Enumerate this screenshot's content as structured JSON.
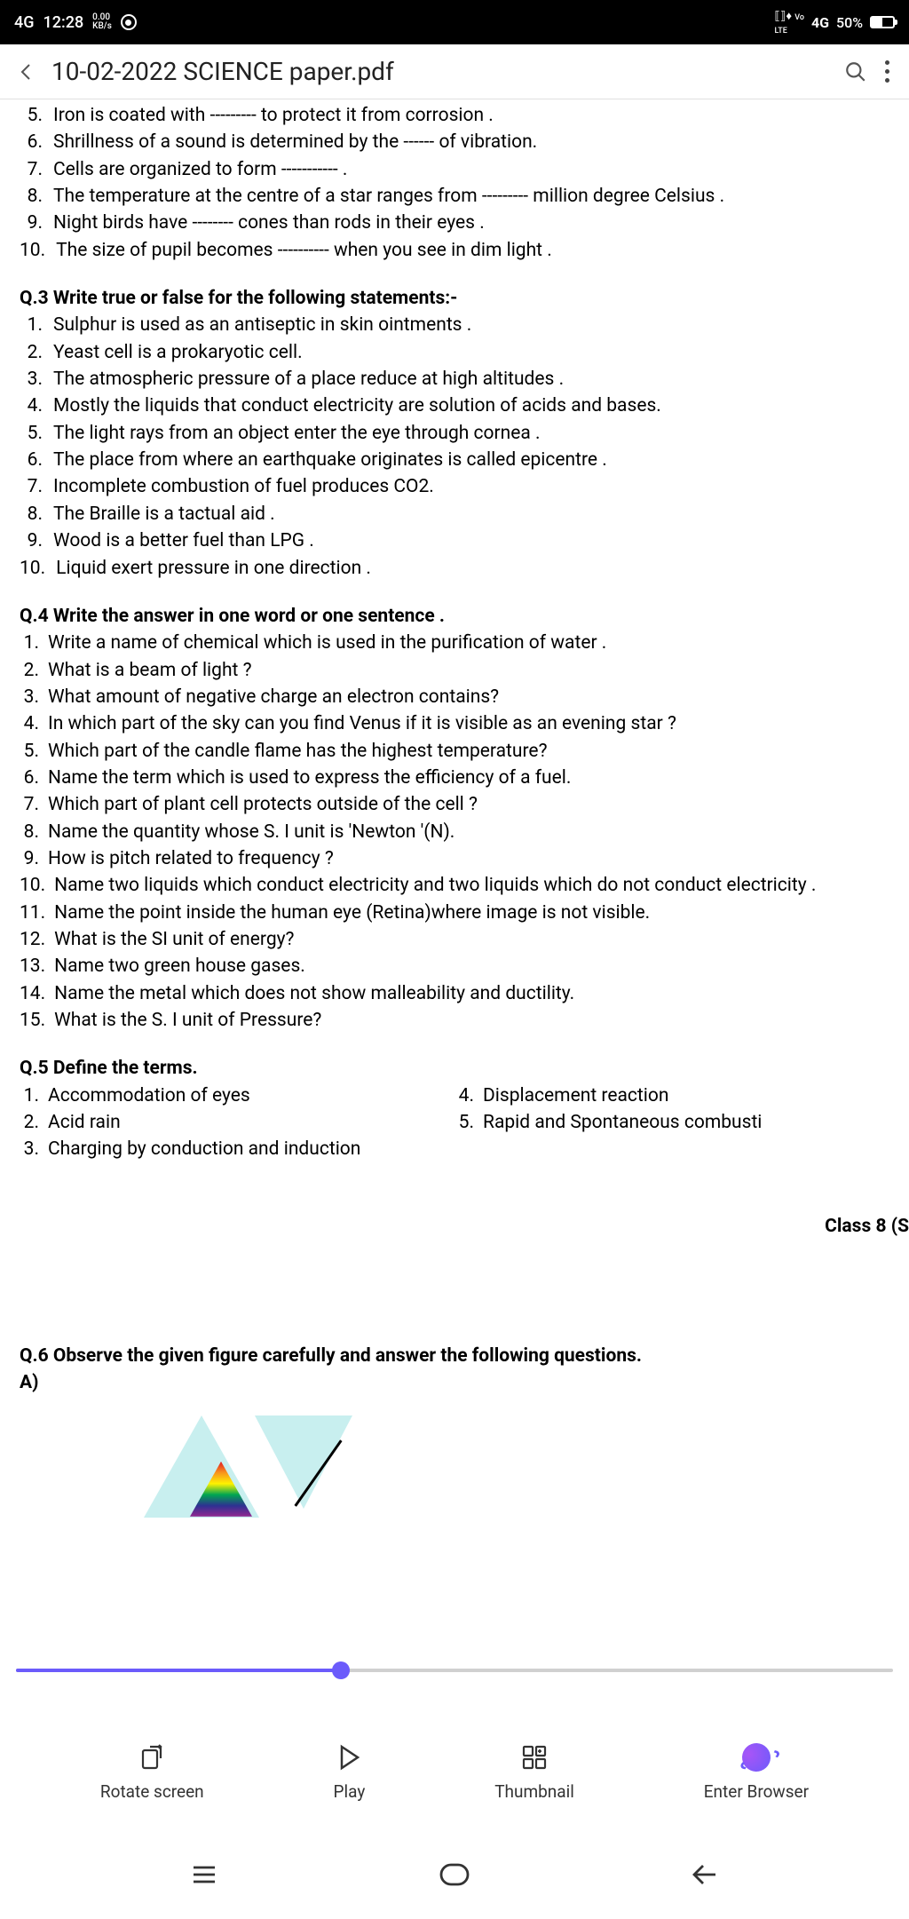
{
  "statusbar": {
    "network": "4G",
    "time": "12:28",
    "speed_top": "0.00",
    "speed_bottom": "KB/s",
    "right_icons": "⟦⟧⟨ Vo 4G",
    "lte": "LTE",
    "battery": "50%"
  },
  "header": {
    "title": "10-02-2022 SCIENCE paper.pdf"
  },
  "fill_blanks": [
    {
      "n": "5.",
      "t": "Iron is coated with --------- to  protect it from  corrosion ."
    },
    {
      "n": "6.",
      "t": "Shrillness of a sound  is determined   by  the ------  of vibration."
    },
    {
      "n": "7.",
      "t": "Cells are organized  to  form ----------- ."
    },
    {
      "n": "8.",
      "t": "The temperature  at  the  centre of a  star  ranges from --------- million degree  Celsius ."
    },
    {
      "n": "9.",
      "t": "Night birds have -------- cones than rods in their  eyes ."
    },
    {
      "n": "10.",
      "t": "The size of pupil becomes ---------- when you see  in  dim light  ."
    }
  ],
  "q3_head": "Q.3  Write true or false  for the following  statements:-",
  "q3": [
    {
      "n": "1.",
      "t": "Sulphur is used as an antiseptic  in skin ointments ."
    },
    {
      "n": "2.",
      "t": "Yeast cell is a prokaryotic cell."
    },
    {
      "n": "3.",
      "t": "The atmospheric pressure of  a place  reduce at high altitudes ."
    },
    {
      "n": "4.",
      "t": "Mostly the liquids that conduct electricity   are solution of acids and bases."
    },
    {
      "n": "5.",
      "t": "The light rays from an object enter the eye through  cornea ."
    },
    {
      "n": "6.",
      "t": "The place from where an earthquake originates  is called  epicentre ."
    },
    {
      "n": "7.",
      "t": "Incomplete combustion of fuel produces CO2."
    },
    {
      "n": "8.",
      "t": "The Braille is a tactual aid ."
    },
    {
      "n": "9.",
      "t": "Wood is a better fuel than LPG ."
    },
    {
      "n": "10.",
      "t": "Liquid exert pressure in one direction ."
    }
  ],
  "q4_head": "Q.4 Write the answer in one word or one sentence .",
  "q4": [
    {
      "n": "1.",
      "t": "Write a name of chemical which is used in the purification of water ."
    },
    {
      "n": "2.",
      "t": "What is a beam of light ?"
    },
    {
      "n": "3.",
      "t": "What amount of negative charge an electron contains?"
    },
    {
      "n": "4.",
      "t": "In which part of the sky can you find Venus if it is visible  as an evening  star ?"
    },
    {
      "n": "5.",
      "t": "Which part of the candle flame has the highest temperature?"
    },
    {
      "n": "6.",
      "t": "Name the term which is used to express the efficiency of a fuel."
    },
    {
      "n": "7.",
      "t": "Which part of plant cell protects outside of the cell ?"
    },
    {
      "n": "8.",
      "t": "Name the quantity whose S. I unit is 'Newton '(N)."
    },
    {
      "n": "9.",
      "t": "How is  pitch related  to frequency  ?"
    },
    {
      "n": "10.",
      "t": "Name two liquids which conduct electricity and two  liquids  which do  not conduct electricity ."
    },
    {
      "n": "11.",
      "t": "Name the point inside the human eye (Retina)where  image is not visible."
    },
    {
      "n": "12.",
      "t": "What is the SI unit of energy?"
    },
    {
      "n": "13.",
      "t": "Name two green house gases."
    },
    {
      "n": "14.",
      "t": "Name the metal which does not show malleability and ductility."
    },
    {
      "n": "15.",
      "t": "What is the S. I unit of Pressure?"
    }
  ],
  "q5_head": "Q.5  Define the terms.",
  "q5a": [
    {
      "n": "1.",
      "t": "Accommodation of eyes"
    },
    {
      "n": "2.",
      "t": "Acid rain"
    },
    {
      "n": "3.",
      "t": "Charging by conduction and induction"
    }
  ],
  "q5b": [
    {
      "n": "4.",
      "t": "Displacement reaction"
    },
    {
      "n": "5.",
      "t": "Rapid and Spontaneous combusti"
    }
  ],
  "class_label": "Class 8 (S",
  "q6_head": "Q.6  Observe the given figure carefully and answer the following questions.",
  "q6_sub": "A)",
  "slider": {
    "percent": 37
  },
  "bottombar": {
    "rotate": "Rotate screen",
    "play": "Play",
    "thumbnail": "Thumbnail",
    "browser": "Enter Browser"
  }
}
